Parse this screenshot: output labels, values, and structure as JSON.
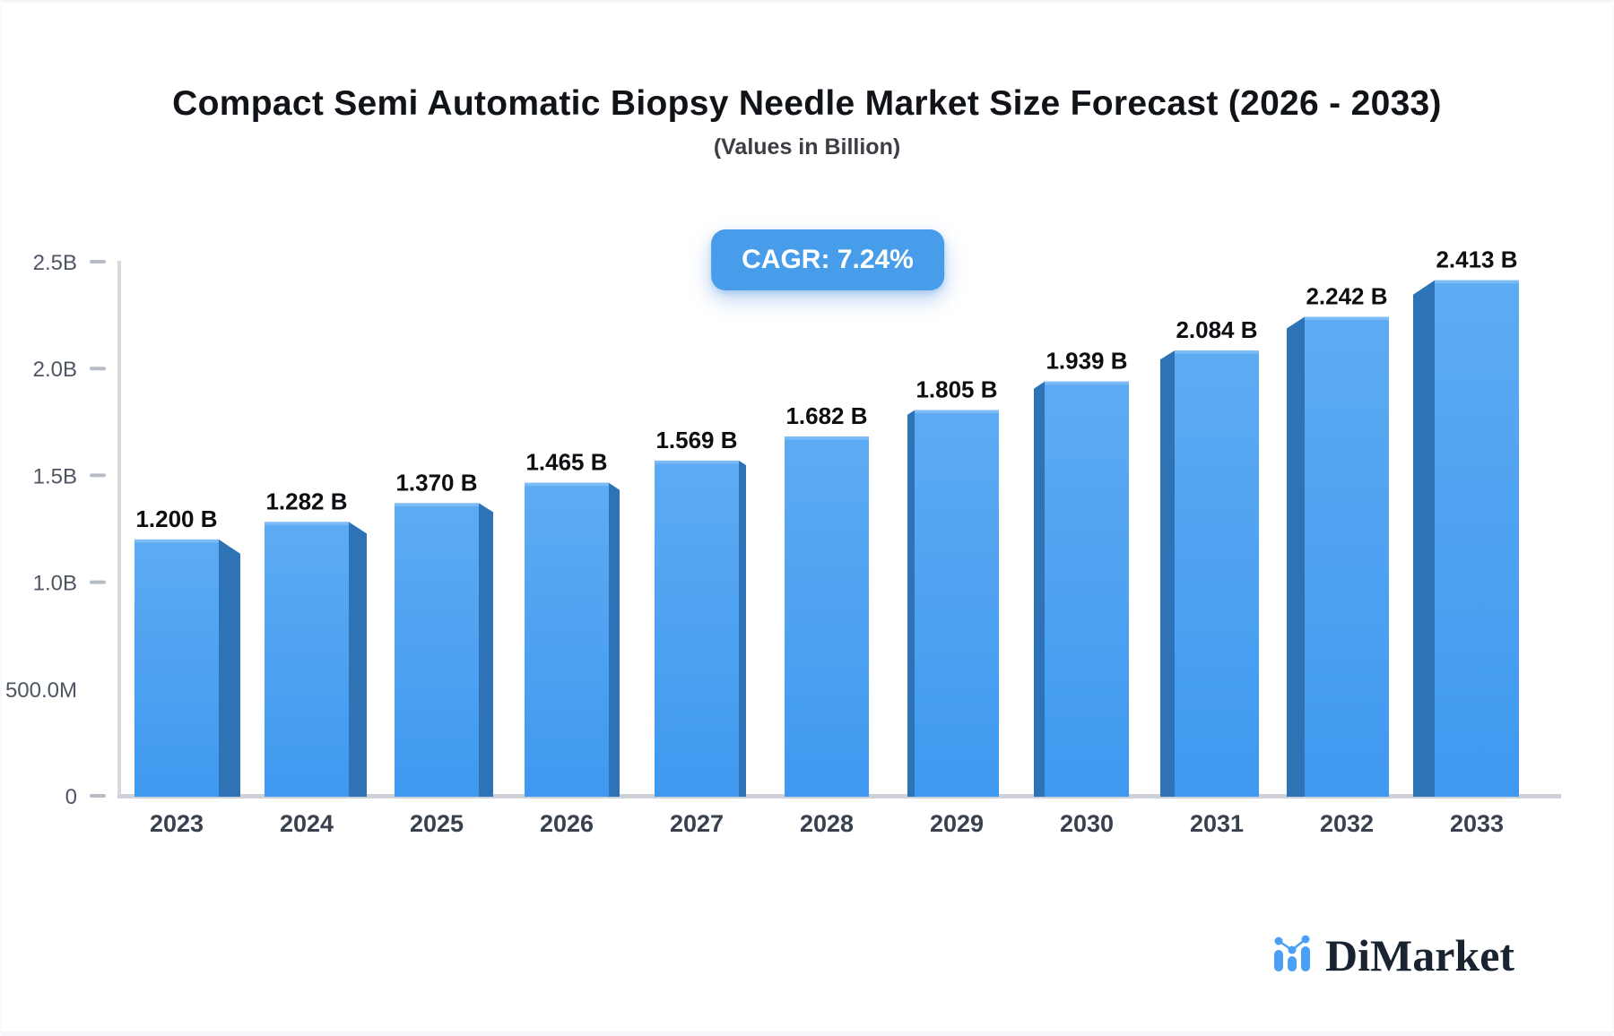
{
  "page": {
    "title": "Compact Semi Automatic Biopsy Needle Market Size Forecast (2026 - 2033)",
    "subtitle": "(Values in Billion)",
    "cagr_badge_label": "CAGR: 7.24%"
  },
  "chart_data": {
    "type": "bar",
    "title": "Compact Semi Automatic Biopsy Needle Market Size Forecast (2026 - 2033)",
    "subtitle": "(Values in Billion)",
    "cagr": "7.24%",
    "categories": [
      "2023",
      "2024",
      "2025",
      "2026",
      "2027",
      "2028",
      "2029",
      "2030",
      "2031",
      "2032",
      "2033"
    ],
    "values": [
      1.2,
      1.282,
      1.37,
      1.465,
      1.569,
      1.682,
      1.805,
      1.939,
      2.084,
      2.242,
      2.413
    ],
    "bar_value_labels": [
      "1.200 B",
      "1.282 B",
      "1.370 B",
      "1.465 B",
      "1.569 B",
      "1.682 B",
      "1.805 B",
      "1.939 B",
      "2.084 B",
      "2.242 B",
      "2.413 B"
    ],
    "xlabel": "",
    "ylabel": "",
    "ylim": [
      0,
      2.5
    ],
    "grid": false,
    "legend_position": "none",
    "y_axis_ticks": [
      {
        "label": "2.5B",
        "value": 2.5,
        "dash": true
      },
      {
        "label": "2.0B",
        "value": 2.0,
        "dash": true
      },
      {
        "label": "1.5B",
        "value": 1.5,
        "dash": true
      },
      {
        "label": "1.0B",
        "value": 1.0,
        "dash": true
      },
      {
        "label": "500.0M",
        "value": 0.5,
        "dash": false
      },
      {
        "label": "0",
        "value": 0.0,
        "dash": true
      }
    ],
    "bar_style": "3d-perspective-toward-center"
  },
  "branding": {
    "logo_text": "DiMarket",
    "logo_icon": "mini-bar-chart-icon"
  },
  "colors": {
    "bar_face_top": "#5dabf2",
    "bar_face_bottom": "#3f99f0",
    "bar_face_highlight": "#7fbdf6",
    "bar_side": "#2d73b6",
    "badge_bg": "#479dea",
    "badge_text": "#ffffff",
    "axis_line": "#d6d9de",
    "baseline": "#ced2d8",
    "tick_dash": "#b6bcc6",
    "tick_text": "#4e5663",
    "year_text": "#38414d",
    "value_text": "#0c0e12",
    "logo_blue": "#4aa0f5",
    "logo_text_color": "#1a2431"
  }
}
